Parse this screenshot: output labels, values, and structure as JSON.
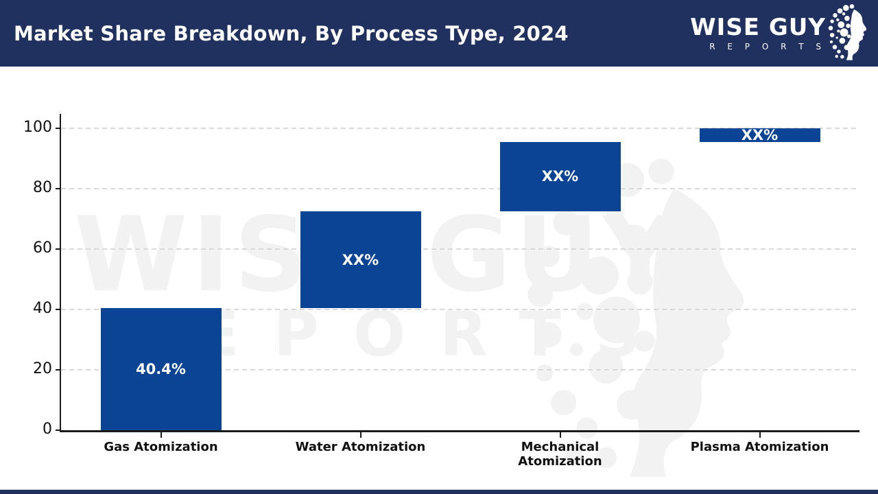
{
  "header": {
    "title": "Market Share Breakdown, By Process Type, 2024",
    "logo": {
      "line1": "WISE GUY",
      "line2": "R E P O R T S"
    }
  },
  "watermark": {
    "line1": "WISE GUY",
    "line2": "REPORTS"
  },
  "chart_data": {
    "type": "bar",
    "subtype": "waterfall-stacked-percent",
    "title": "Market Share Breakdown, By Process Type, 2024",
    "categories": [
      {
        "label": "Gas Atomization",
        "lines": [
          "Gas Atomization"
        ]
      },
      {
        "label": "Water Atomization",
        "lines": [
          "Water Atomization"
        ]
      },
      {
        "label": "Mechanical Atomization",
        "lines": [
          "Mechanical",
          "Atomization"
        ]
      },
      {
        "label": "Plasma Atomization",
        "lines": [
          "Plasma Atomization"
        ]
      }
    ],
    "segments": [
      {
        "category": "Gas Atomization",
        "start": 0,
        "end": 40.4,
        "display": "40.4%"
      },
      {
        "category": "Water Atomization",
        "start": 40.4,
        "end": 72.5,
        "display": "XX%"
      },
      {
        "category": "Mechanical Atomization",
        "start": 72.5,
        "end": 95.5,
        "display": "XX%"
      },
      {
        "category": "Plasma Atomization",
        "start": 95.5,
        "end": 100,
        "display": "XX%"
      }
    ],
    "y_ticks": [
      0,
      20,
      40,
      60,
      80,
      100
    ],
    "ylim": [
      0,
      104.8
    ],
    "xlabel": "",
    "ylabel": "",
    "legend": null,
    "grid": "horizontal-dashed",
    "bar_color": "#0B4495",
    "value_label_color": "#FFFFFF"
  },
  "colors": {
    "header_bg": "#20315F",
    "bar": "#0B4495",
    "axis": "#1A1A1A",
    "gridline": "#D9D9D9",
    "watermark": "#F2F2F2",
    "title_text": "#FFFFFF"
  }
}
